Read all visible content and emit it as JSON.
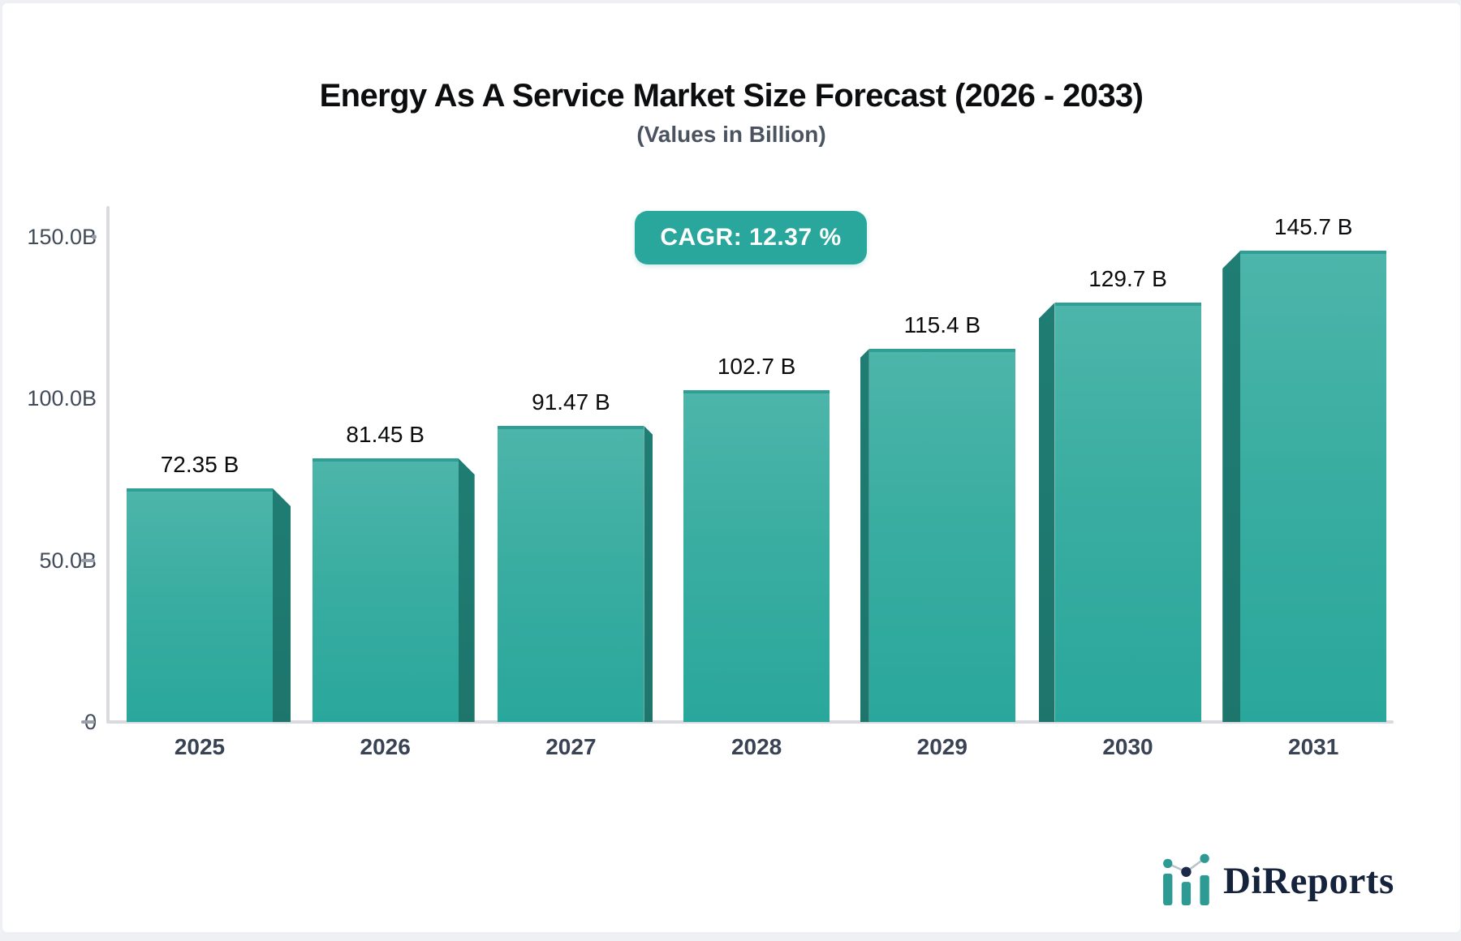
{
  "page": {
    "title": "Energy As A Service Market Size Forecast (2026 - 2033)",
    "subtitle": "(Values in Billion)",
    "cagr_label": "CAGR: 12.37 %",
    "brand": "DiReports"
  },
  "colors": {
    "accent_teal": "#2aa79c",
    "bar_top": "#4db5aa",
    "bar_bottom": "#2aa79c",
    "bar_side": "#1f7d73",
    "axis_line": "#d8dadf",
    "axis_text": "#414b5a",
    "badge_text": "#ffffff",
    "brand_navy": "#16233c"
  },
  "chart_data": {
    "type": "bar",
    "title": "Energy As A Service Market Size Forecast (2026 - 2033)",
    "subtitle": "(Values in Billion)",
    "annotation": "CAGR: 12.37 %",
    "categories": [
      "2025",
      "2026",
      "2027",
      "2028",
      "2029",
      "2030",
      "2031"
    ],
    "values": [
      72.35,
      81.45,
      91.47,
      102.7,
      115.4,
      129.7,
      145.7
    ],
    "value_labels": [
      "72.35 B",
      "81.45 B",
      "91.47 B",
      "102.7 B",
      "115.4 B",
      "129.7 B",
      "145.7 B"
    ],
    "xlabel": "",
    "ylabel": "",
    "ylim": [
      0,
      155
    ],
    "grid": false,
    "legend": false,
    "y_ticks": [
      {
        "label": "150.0B",
        "value": 150,
        "tick": "dot"
      },
      {
        "label": "100.0B",
        "value": 100,
        "tick": "none"
      },
      {
        "label": "50.0B",
        "value": 50,
        "tick": "dash"
      },
      {
        "label": "0",
        "value": 0,
        "tick": "dash"
      }
    ]
  }
}
